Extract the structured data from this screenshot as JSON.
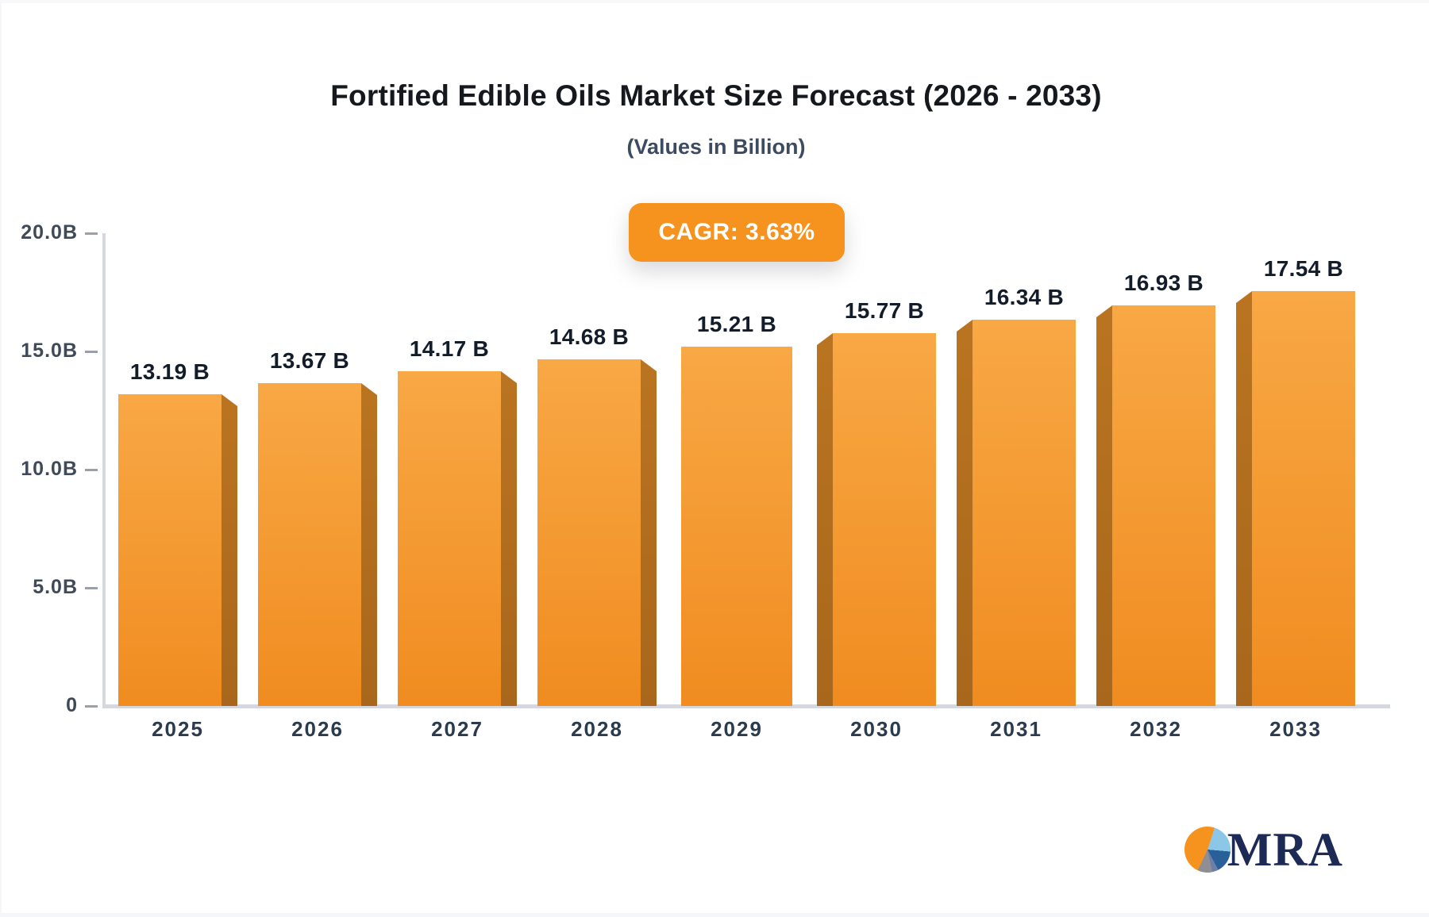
{
  "page": {
    "title": "Fortified Edible Oils Market Size Forecast (2026 - 2033)",
    "subtitle": "(Values in Billion)",
    "cagr_badge": "CAGR: 3.63%"
  },
  "chart_data": {
    "type": "bar",
    "title": "Fortified Edible Oils Market Size Forecast (2026 - 2033)",
    "subtitle": "(Values in Billion)",
    "annotation": "CAGR: 3.63%",
    "categories": [
      "2025",
      "2026",
      "2027",
      "2028",
      "2029",
      "2030",
      "2031",
      "2032",
      "2033"
    ],
    "values": [
      13.19,
      13.67,
      14.17,
      14.68,
      15.21,
      15.77,
      16.34,
      16.93,
      17.54
    ],
    "value_labels": [
      "13.19 B",
      "13.67 B",
      "14.17 B",
      "14.68 B",
      "15.21 B",
      "15.77 B",
      "16.34 B",
      "16.93 B",
      "17.54 B"
    ],
    "unit": "Billion",
    "ylim": [
      0,
      20
    ],
    "y_ticks": [
      {
        "value": 0,
        "label": "0"
      },
      {
        "value": 5,
        "label": "5.0B"
      },
      {
        "value": 10,
        "label": "10.0B"
      },
      {
        "value": 15,
        "label": "15.0B"
      },
      {
        "value": 20,
        "label": "20.0B"
      }
    ],
    "grid": "off",
    "legend": "none",
    "colors": {
      "bar_top": "#f8a845",
      "bar_bottom": "#f08c20",
      "bevel_top": "#ba7421",
      "bevel_bottom": "#a8671c",
      "badge": "#f6921e",
      "axis": "#d5d8de"
    }
  },
  "logo": {
    "text": "MRA",
    "pie_slice_colors": [
      "#f6921e",
      "#8cc7e8",
      "#2a6099",
      "#8e8e94",
      "#6c7fa8"
    ]
  }
}
